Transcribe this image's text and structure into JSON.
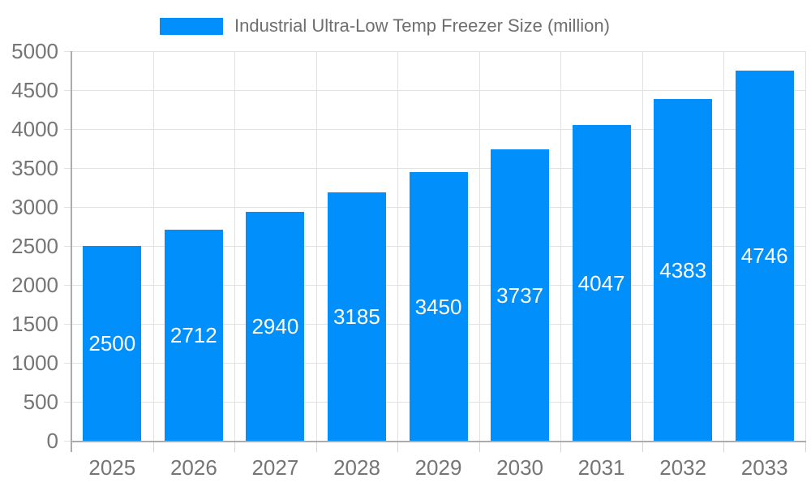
{
  "chart_data": {
    "type": "bar",
    "title": "Industrial Ultra-Low Temp Freezer Size (million)",
    "legend": {
      "position": "top",
      "entries": [
        "Industrial Ultra-Low Temp Freezer Size (million)"
      ]
    },
    "categories": [
      "2025",
      "2026",
      "2027",
      "2028",
      "2029",
      "2030",
      "2031",
      "2032",
      "2033"
    ],
    "series": [
      {
        "name": "Industrial Ultra-Low Temp Freezer Size (million)",
        "values": [
          2500,
          2712,
          2940,
          3185,
          3450,
          3737,
          4047,
          4383,
          4746
        ]
      }
    ],
    "data_labels": [
      "2500",
      "2712",
      "2940",
      "3185",
      "3450",
      "3737",
      "4047",
      "4383",
      "4746"
    ],
    "xlabel": "",
    "ylabel": "",
    "ylim": [
      0,
      5000
    ],
    "ytick_step": 500,
    "ytick_labels": [
      "0",
      "500",
      "1000",
      "1500",
      "2000",
      "2500",
      "3000",
      "3500",
      "4000",
      "4500",
      "5000"
    ],
    "grid": "horizontal and vertical gridlines on",
    "colors": {
      "bar": "#008FFB",
      "bar_label": "#FFFFFF",
      "axis_text": "#757575",
      "legend_text": "#6E6E6E",
      "gridline": "#E2E2E2",
      "axis_line": "#ABABAB",
      "tick": "#D4D4D4",
      "background": "#FFFFFF"
    }
  }
}
